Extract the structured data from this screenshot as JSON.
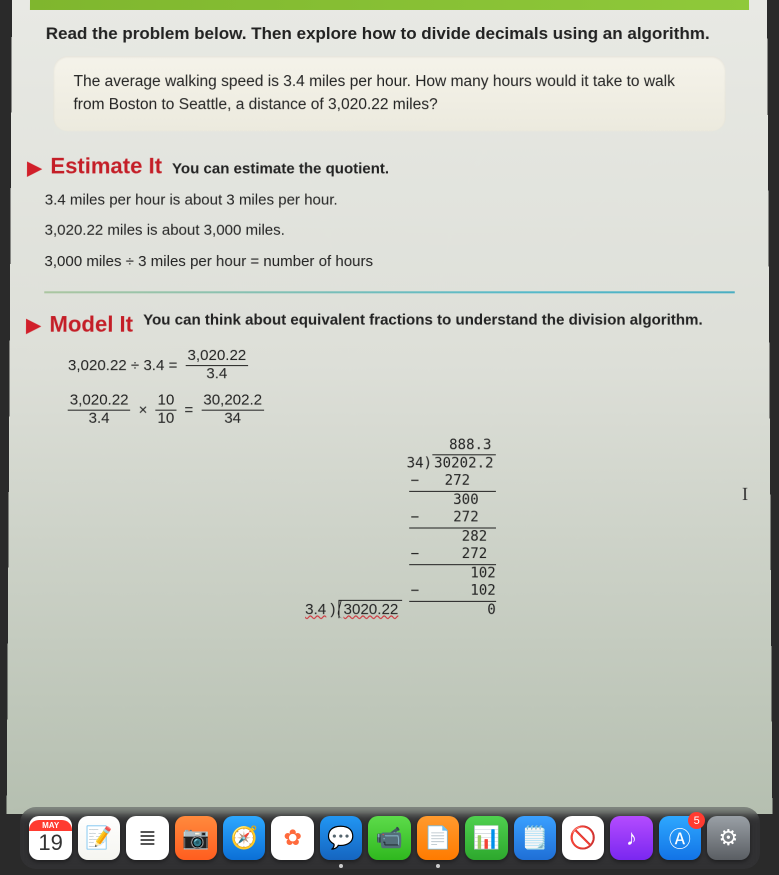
{
  "page": {
    "heading": "Read the problem below. Then explore how to divide decimals using an algorithm.",
    "problem": "The average walking speed is 3.4 miles per hour. How many hours would it take to walk from Boston to Seattle, a distance of 3,020.22 miles?"
  },
  "estimate": {
    "title": "Estimate It",
    "subtitle": "You can estimate the quotient.",
    "line1": "3.4 miles per hour is about 3 miles per hour.",
    "line2": "3,020.22 miles is about 3,000 miles.",
    "line3": "3,000 miles ÷ 3 miles per hour = number of hours"
  },
  "model": {
    "title": "Model It",
    "subtitle": "You can think about equivalent fractions to understand the division algorithm.",
    "eq1_left": "3,020.22 ÷ 3.4 =",
    "eq1_num": "3,020.22",
    "eq1_den": "3.4",
    "eq2_f1_num": "3,020.22",
    "eq2_f1_den": "3.4",
    "eq2_times": "×",
    "eq2_f2_num": "10",
    "eq2_f2_den": "10",
    "eq2_eq": "=",
    "eq2_f3_num": "30,202.2",
    "eq2_f3_den": "34",
    "ld1_divisor": "3.4",
    "ld1_dividend": "3020.22",
    "ld2": {
      "quotient": "888.3",
      "divisor": "34",
      "dividend": "30202.2",
      "steps": [
        {
          "op": "−",
          "val": "272   "
        },
        {
          "op": "",
          "val": "300  ",
          "rule": true
        },
        {
          "op": "−",
          "val": "272  "
        },
        {
          "op": "",
          "val": "282 ",
          "rule": true
        },
        {
          "op": "−",
          "val": "272 "
        },
        {
          "op": "",
          "val": "102",
          "rule": true
        },
        {
          "op": "−",
          "val": "102"
        },
        {
          "op": "",
          "val": "0",
          "rule": true
        }
      ]
    }
  },
  "cursor": "I",
  "dock": {
    "calendar": {
      "month": "MAY",
      "day": "19"
    },
    "apps": [
      {
        "name": "notes",
        "bg": "linear-gradient(#fff,#f5f5f0)",
        "glyph": "📝",
        "dot": false
      },
      {
        "name": "reminders",
        "bg": "#fff",
        "glyph": "≣",
        "color": "#555",
        "dot": false
      },
      {
        "name": "photobooth",
        "bg": "linear-gradient(#ff8a3d,#ff5e1f)",
        "glyph": "📷",
        "dot": false
      },
      {
        "name": "safari",
        "bg": "linear-gradient(#2da8ff,#0b6fd6)",
        "glyph": "🧭",
        "dot": false
      },
      {
        "name": "photos",
        "bg": "#fff",
        "glyph": "✿",
        "color": "#ff6a3c",
        "dot": false
      },
      {
        "name": "messages",
        "bg": "linear-gradient(#2196f3,#1565c0)",
        "glyph": "💬",
        "dot": true
      },
      {
        "name": "facetime",
        "bg": "linear-gradient(#5ddb4a,#2fb81f)",
        "glyph": "📹",
        "dot": false
      },
      {
        "name": "pages",
        "bg": "linear-gradient(#ff9a2e,#ff7b00)",
        "glyph": "📄",
        "dot": true
      },
      {
        "name": "numbers",
        "bg": "linear-gradient(#4fd04f,#2da82d)",
        "glyph": "📊",
        "dot": false
      },
      {
        "name": "keynote",
        "bg": "linear-gradient(#3aa0ff,#1f6fd6)",
        "glyph": "🗒️",
        "dot": false
      },
      {
        "name": "restricted",
        "bg": "#fff",
        "glyph": "🚫",
        "color": "#d02a2a",
        "dot": false
      },
      {
        "name": "itunes",
        "bg": "linear-gradient(#b44cff,#7a27f0)",
        "glyph": "♪",
        "dot": false
      },
      {
        "name": "appstore",
        "bg": "linear-gradient(#2ea8ff,#1273e6)",
        "glyph": "Ⓐ",
        "dot": false,
        "badge": "5"
      },
      {
        "name": "settings",
        "bg": "linear-gradient(#9aa0a6,#5a5e63)",
        "glyph": "⚙︎",
        "dot": false
      }
    ]
  },
  "colors": {
    "accent_red": "#c41e27",
    "arrow_red": "#d11f2a",
    "underline_red": "#d11f2a",
    "green_bar_start": "#7fb62e",
    "green_bar_end": "#8fc93a",
    "divider_start": "#abc6a0",
    "divider_end": "#4aaec2",
    "problem_box_bg": "#f5f3ea"
  }
}
